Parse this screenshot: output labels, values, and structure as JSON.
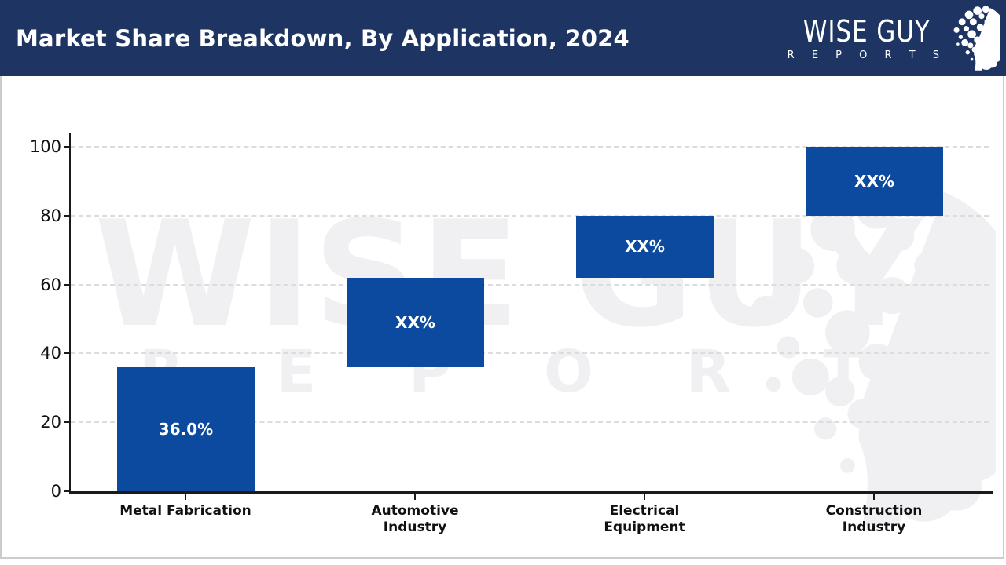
{
  "header": {
    "logo": {
      "wordmark": "WISE GUY",
      "subtext": "R E P O R T S"
    }
  },
  "watermark": {
    "wordmark": "WISE GUY",
    "subtext": "R E P O R T S"
  },
  "chart_data": {
    "type": "bar",
    "subtype": "waterfall",
    "title": "Market Share Breakdown, By Application, 2024",
    "ylim": [
      0,
      100
    ],
    "yticks": [
      0,
      20,
      40,
      60,
      80,
      100
    ],
    "grid": "horizontal-dashed",
    "legend": "none",
    "segments": [
      {
        "category": "Metal Fabrication",
        "start": 0,
        "end": 36,
        "label": "36.0%"
      },
      {
        "category": "Automotive\nIndustry",
        "start": 36,
        "end": 62,
        "label": "XX%"
      },
      {
        "category": "Electrical\nEquipment",
        "start": 62,
        "end": 80,
        "label": "XX%"
      },
      {
        "category": "Construction\nIndustry",
        "start": 80,
        "end": 100,
        "label": "XX%"
      }
    ],
    "colors": {
      "header_bg": "#1e3564",
      "bar": "#0c4aa0",
      "bar_label": "#ffffff",
      "axis": "#1a1a1a",
      "gridline": "#dcdcdc",
      "tick_label": "#111111",
      "watermark": "#f0f0f3",
      "frame_border": "#cccccc"
    }
  }
}
